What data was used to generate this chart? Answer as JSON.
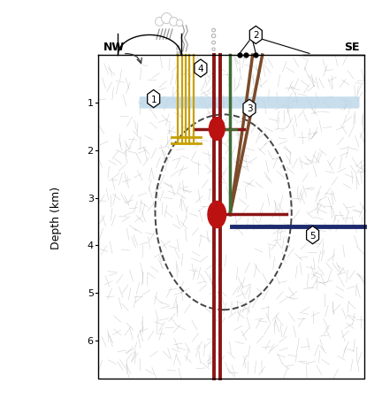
{
  "bg_color": "#f5f5f5",
  "box_bg": "#f0f0ee",
  "scatter_color": "#aaaaaa",
  "ylabel": "Depth (km)",
  "nw_label": "NW",
  "se_label": "SE",
  "yticks": [
    1,
    2,
    3,
    4,
    5,
    6
  ],
  "water_table_color": "#b8d4e8",
  "dark_red": "#8B1515",
  "green_pipe": "#3d6e35",
  "brown_pipe": "#7B4B2A",
  "gold_pipe": "#C8A000",
  "dark_navy": "#1e2a6e",
  "magma_red": "#bb1111",
  "dashed_color": "#444444",
  "surface_color": "#cccccc",
  "cloud_color": "#cccccc",
  "arrow_color": "#333333"
}
